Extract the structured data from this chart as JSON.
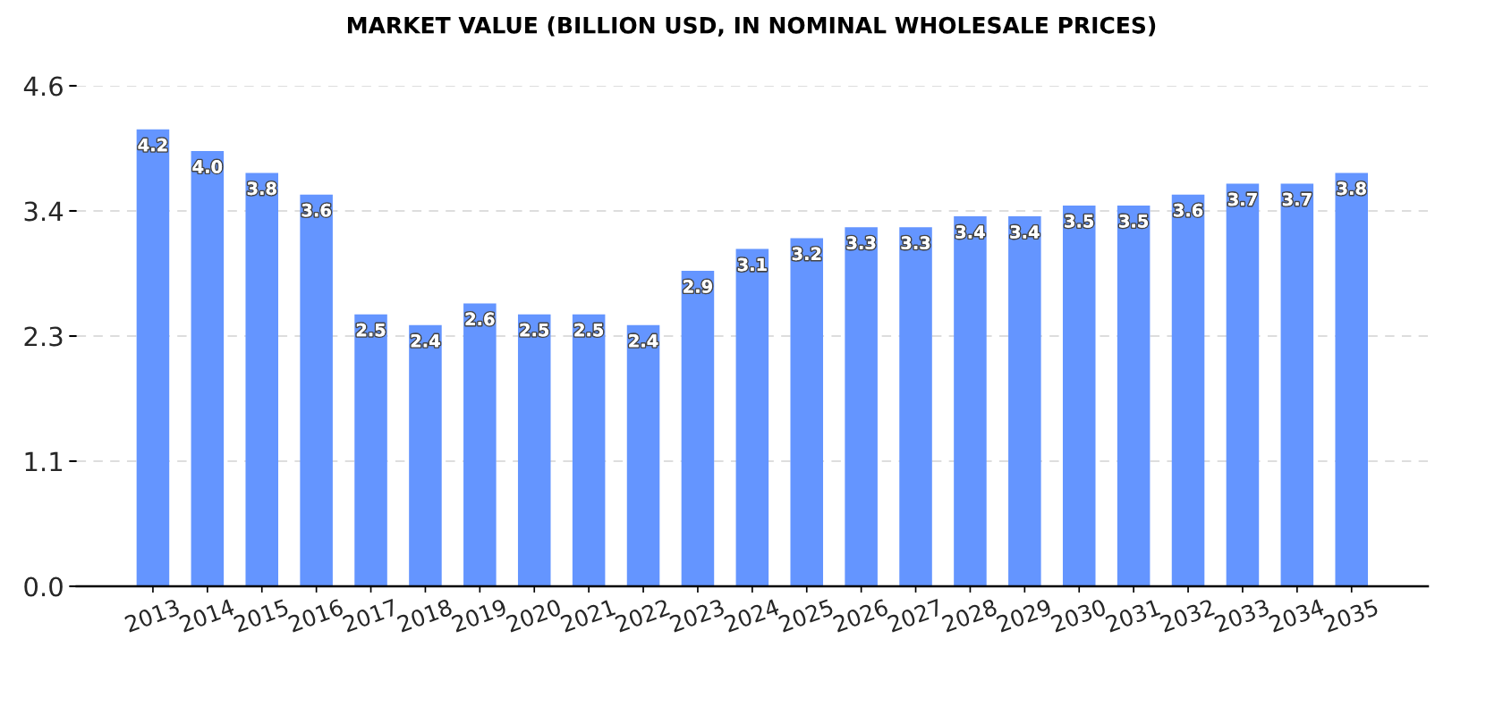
{
  "chart_data": {
    "type": "bar",
    "title": "MARKET VALUE (BILLION USD, IN NOMINAL WHOLESALE PRICES)",
    "categories": [
      "2013",
      "2014",
      "2015",
      "2016",
      "2017",
      "2018",
      "2019",
      "2020",
      "2021",
      "2022",
      "2023",
      "2024",
      "2025",
      "2026",
      "2027",
      "2028",
      "2029",
      "2030",
      "2031",
      "2032",
      "2033",
      "2034",
      "2035"
    ],
    "values": [
      4.2,
      4.0,
      3.8,
      3.6,
      2.5,
      2.4,
      2.6,
      2.5,
      2.5,
      2.4,
      2.9,
      3.1,
      3.2,
      3.3,
      3.3,
      3.4,
      3.4,
      3.5,
      3.5,
      3.6,
      3.7,
      3.7,
      3.8
    ],
    "value_labels": [
      "4.2",
      "4.0",
      "3.8",
      "3.6",
      "2.5",
      "2.4",
      "2.6",
      "2.5",
      "2.5",
      "2.4",
      "2.9",
      "3.1",
      "3.2",
      "3.3",
      "3.3",
      "3.4",
      "3.4",
      "3.5",
      "3.5",
      "3.6",
      "3.7",
      "3.7",
      "3.8"
    ],
    "color": "#6495ff",
    "ylim": [
      0,
      4.6
    ],
    "yticks": [
      {
        "value": 0,
        "label": "0.0"
      },
      {
        "value": 1.15,
        "label": "1.1"
      },
      2.3,
      {
        "value": 3.45,
        "label": "3.4"
      },
      4.6
    ],
    "grid": "y"
  }
}
